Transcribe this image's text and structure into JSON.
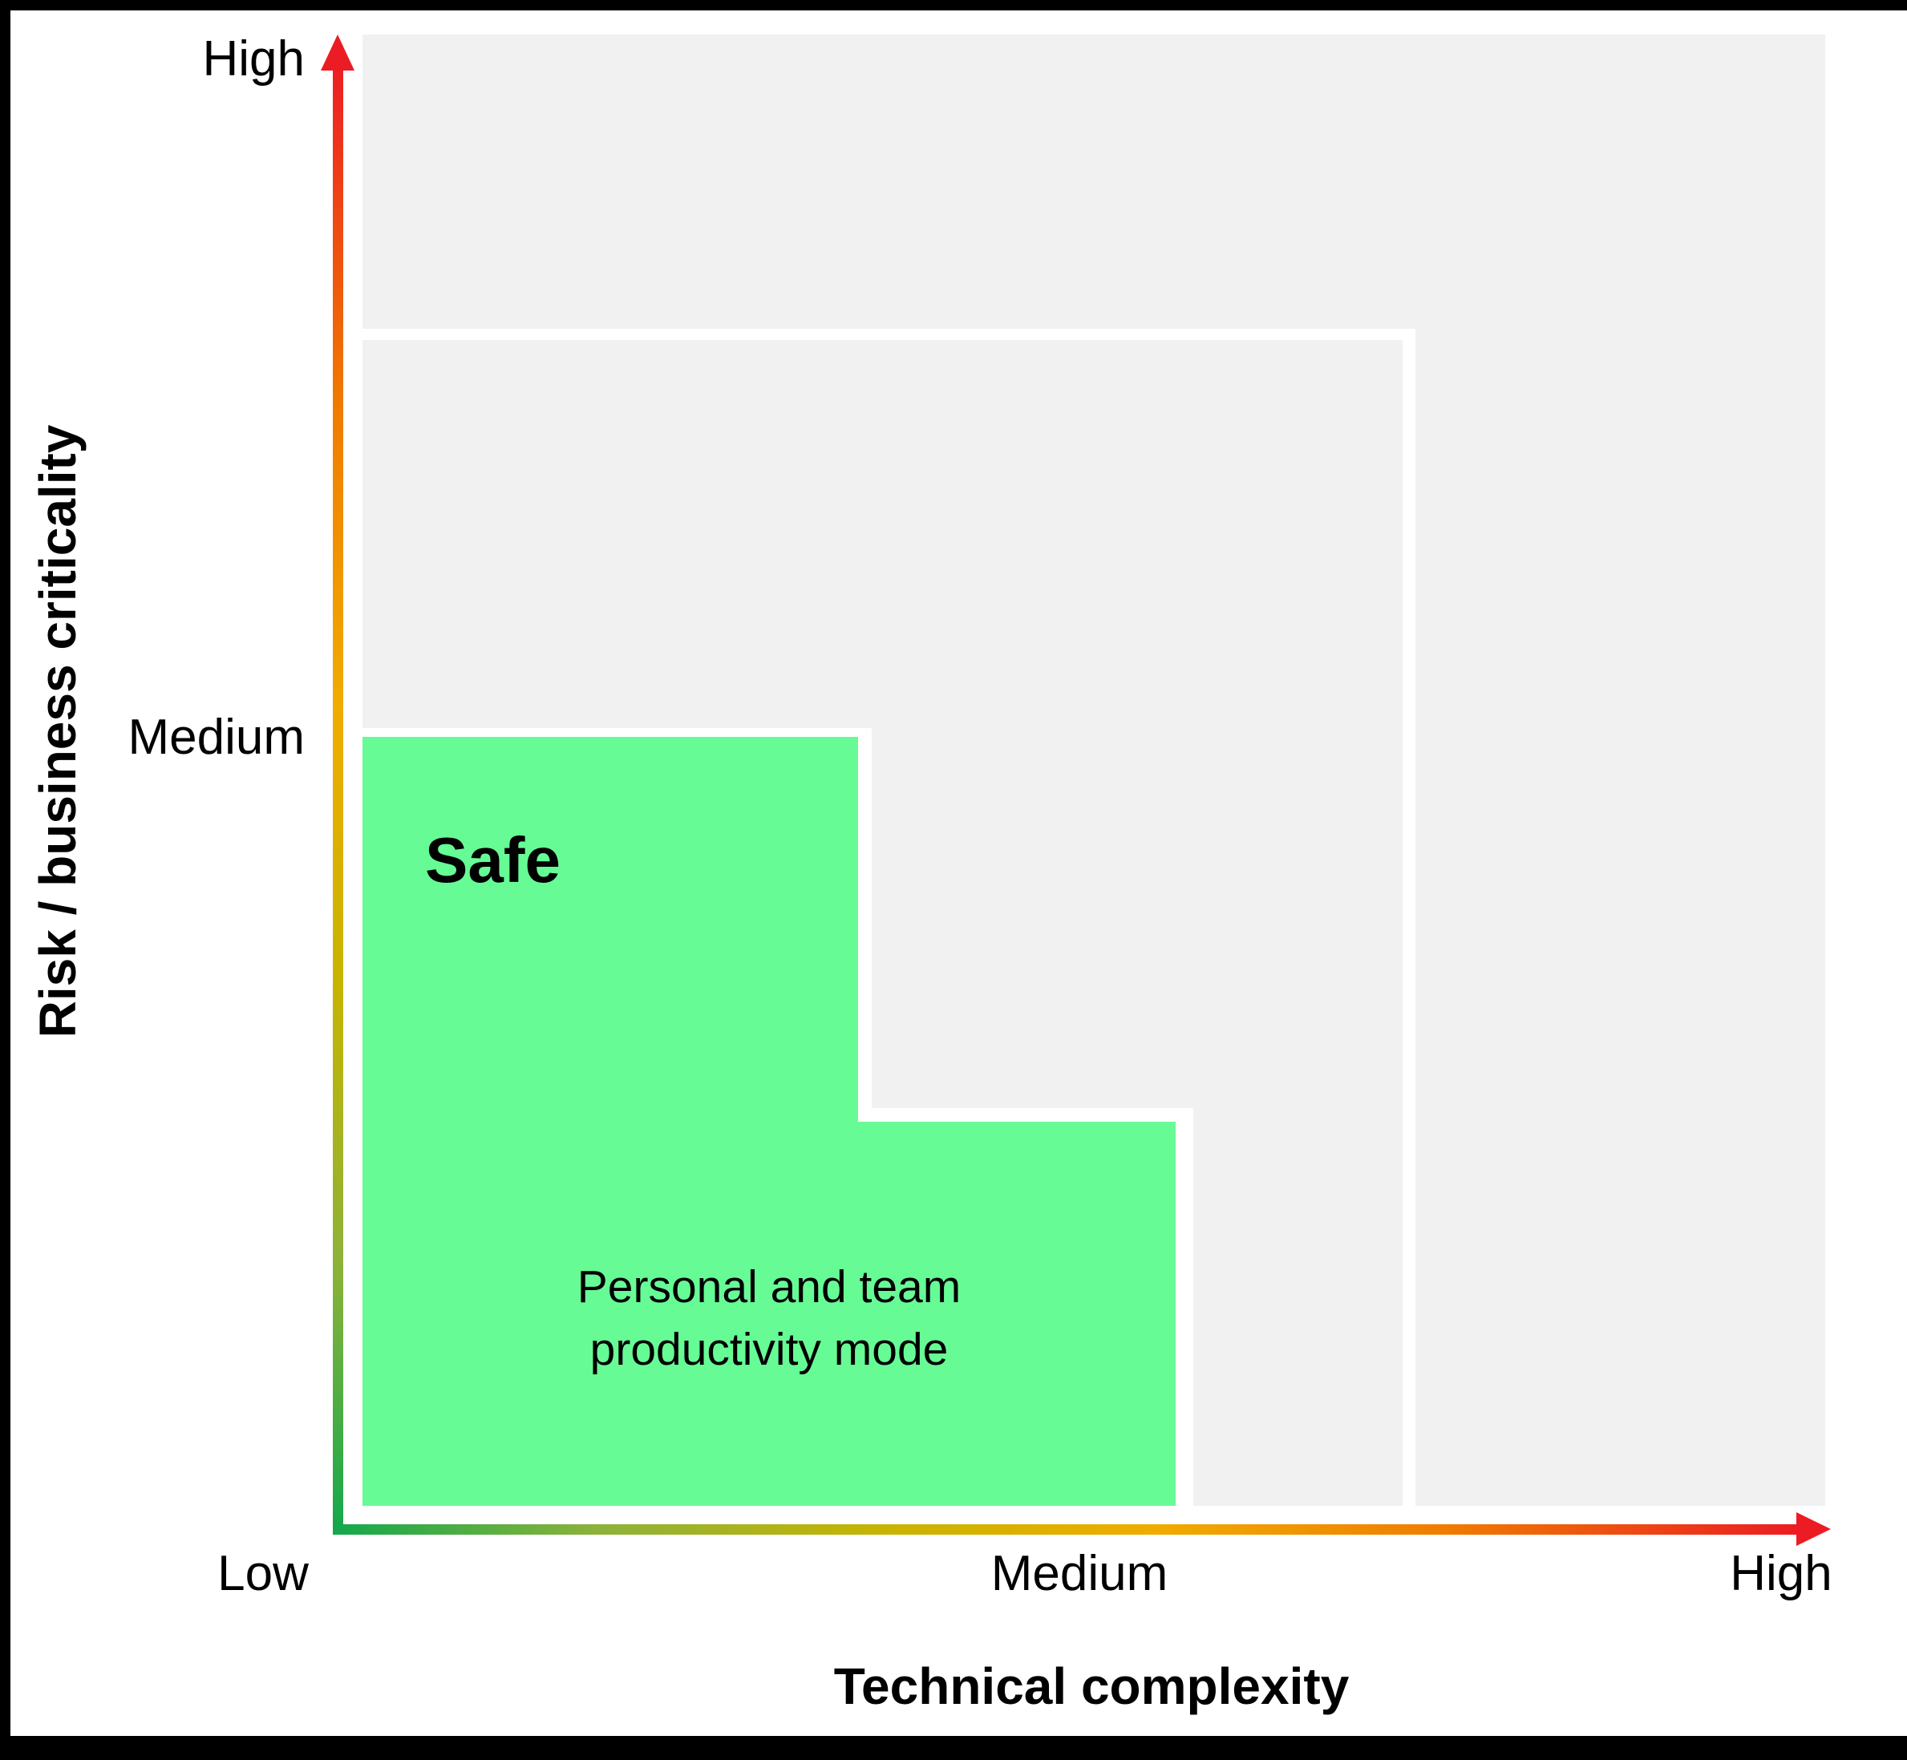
{
  "figure": {
    "safe_zone": {
      "label": "Safe",
      "annotation_lines": [
        "Personal and team",
        "productivity mode"
      ]
    },
    "axes": {
      "y": {
        "title": "Risk / business criticality",
        "ticks": [
          {
            "label": "High",
            "position": "top"
          },
          {
            "label": "Medium",
            "position": "middle"
          }
        ]
      },
      "x": {
        "title": "Technical complexity",
        "ticks": [
          {
            "label": "Low",
            "position": "left"
          },
          {
            "label": "Medium",
            "position": "center"
          },
          {
            "label": "High",
            "position": "right"
          }
        ]
      }
    }
  },
  "colors": {
    "green_fill": "#66FB95",
    "zone_gray": "#F1F1F1",
    "arrow_red": "#EC1C24",
    "axis_green": "#13A84D",
    "axis_yellowgreen": "#8CB23A",
    "axis_yellow": "#C8B400",
    "axis_amber": "#F0AC00",
    "axis_orange": "#F07C00",
    "frame_black": "#000000",
    "text_black": "#000000",
    "background": "#FFFFFF"
  },
  "chart_data": {
    "type": "area",
    "title": "",
    "xlabel": "Technical complexity",
    "ylabel": "Risk / business criticality",
    "x_tick_labels": [
      "Low",
      "Medium",
      "High"
    ],
    "y_tick_labels": [
      "Medium",
      "High"
    ],
    "x_axis_style": "gradient arrow, green (Low) to red (High)",
    "y_axis_style": "gradient arrow, green (Low) to red (High)",
    "grid": false,
    "legend": false,
    "zones": [
      {
        "name": "safe",
        "label": "Safe",
        "annotation": "Personal and team productivity mode",
        "color": "#66FB95",
        "shape": "step-polygon",
        "description": "Green zone in lower-left: spans x Low to ~0.34 up to y 0.52 (Medium), stepping wider to x 0.56 below y 0.26",
        "vertices_fraction_of_plot": [
          [
            0,
            0.52
          ],
          [
            0.34,
            0.52
          ],
          [
            0.34,
            0.26
          ],
          [
            0.56,
            0.26
          ],
          [
            0.56,
            0
          ],
          [
            0,
            0
          ]
        ]
      },
      {
        "name": "middle-zone",
        "label": "",
        "color": "#F1F1F1",
        "shape": "rect",
        "description": "Gray zone with white outline, from origin to x 0.71, y 0.79",
        "vertices_fraction_of_plot": [
          [
            0,
            0.79
          ],
          [
            0.71,
            0.79
          ],
          [
            0.71,
            0
          ],
          [
            0,
            0
          ]
        ]
      },
      {
        "name": "outer-zone",
        "label": "",
        "color": "#F1F1F1",
        "shape": "rect",
        "description": "Outermost gray zone filling entire plot area",
        "vertices_fraction_of_plot": [
          [
            0,
            1
          ],
          [
            1,
            1
          ],
          [
            1,
            0
          ],
          [
            0,
            0
          ]
        ]
      }
    ]
  }
}
